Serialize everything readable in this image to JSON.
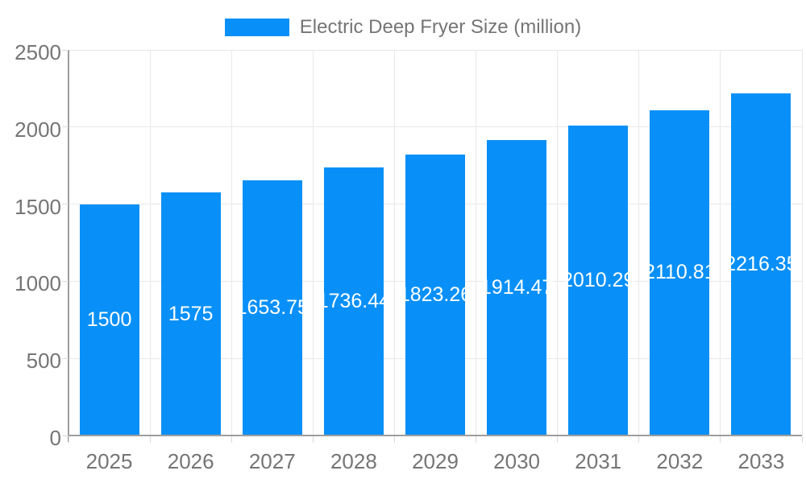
{
  "legend": {
    "label": "Electric Deep Fryer Size (million)"
  },
  "chart_data": {
    "type": "bar",
    "title": "Electric Deep Fryer Size (million)",
    "legend_position": "top",
    "categories": [
      "2025",
      "2026",
      "2027",
      "2028",
      "2029",
      "2030",
      "2031",
      "2032",
      "2033"
    ],
    "values": [
      1500,
      1575,
      1653.75,
      1736.44,
      1823.26,
      1914.47,
      2010.29,
      2110.81,
      2216.35
    ],
    "value_labels": [
      "1500",
      "1575",
      "1653.75",
      "1736.44",
      "1823.26",
      "1914.47",
      "2010.29",
      "2110.81",
      "2216.35"
    ],
    "xlabel": "",
    "ylabel": "",
    "ylim": [
      0,
      2500
    ],
    "yticks": [
      0,
      500,
      1000,
      1500,
      2000,
      2500
    ],
    "grid": true,
    "colors": {
      "bar": "#0890F8",
      "grid": "#e8e8e8",
      "tick": "#dadada",
      "axis": "#9e9e9e",
      "tick_label": "#757575",
      "value_label": "#ffffff"
    }
  }
}
